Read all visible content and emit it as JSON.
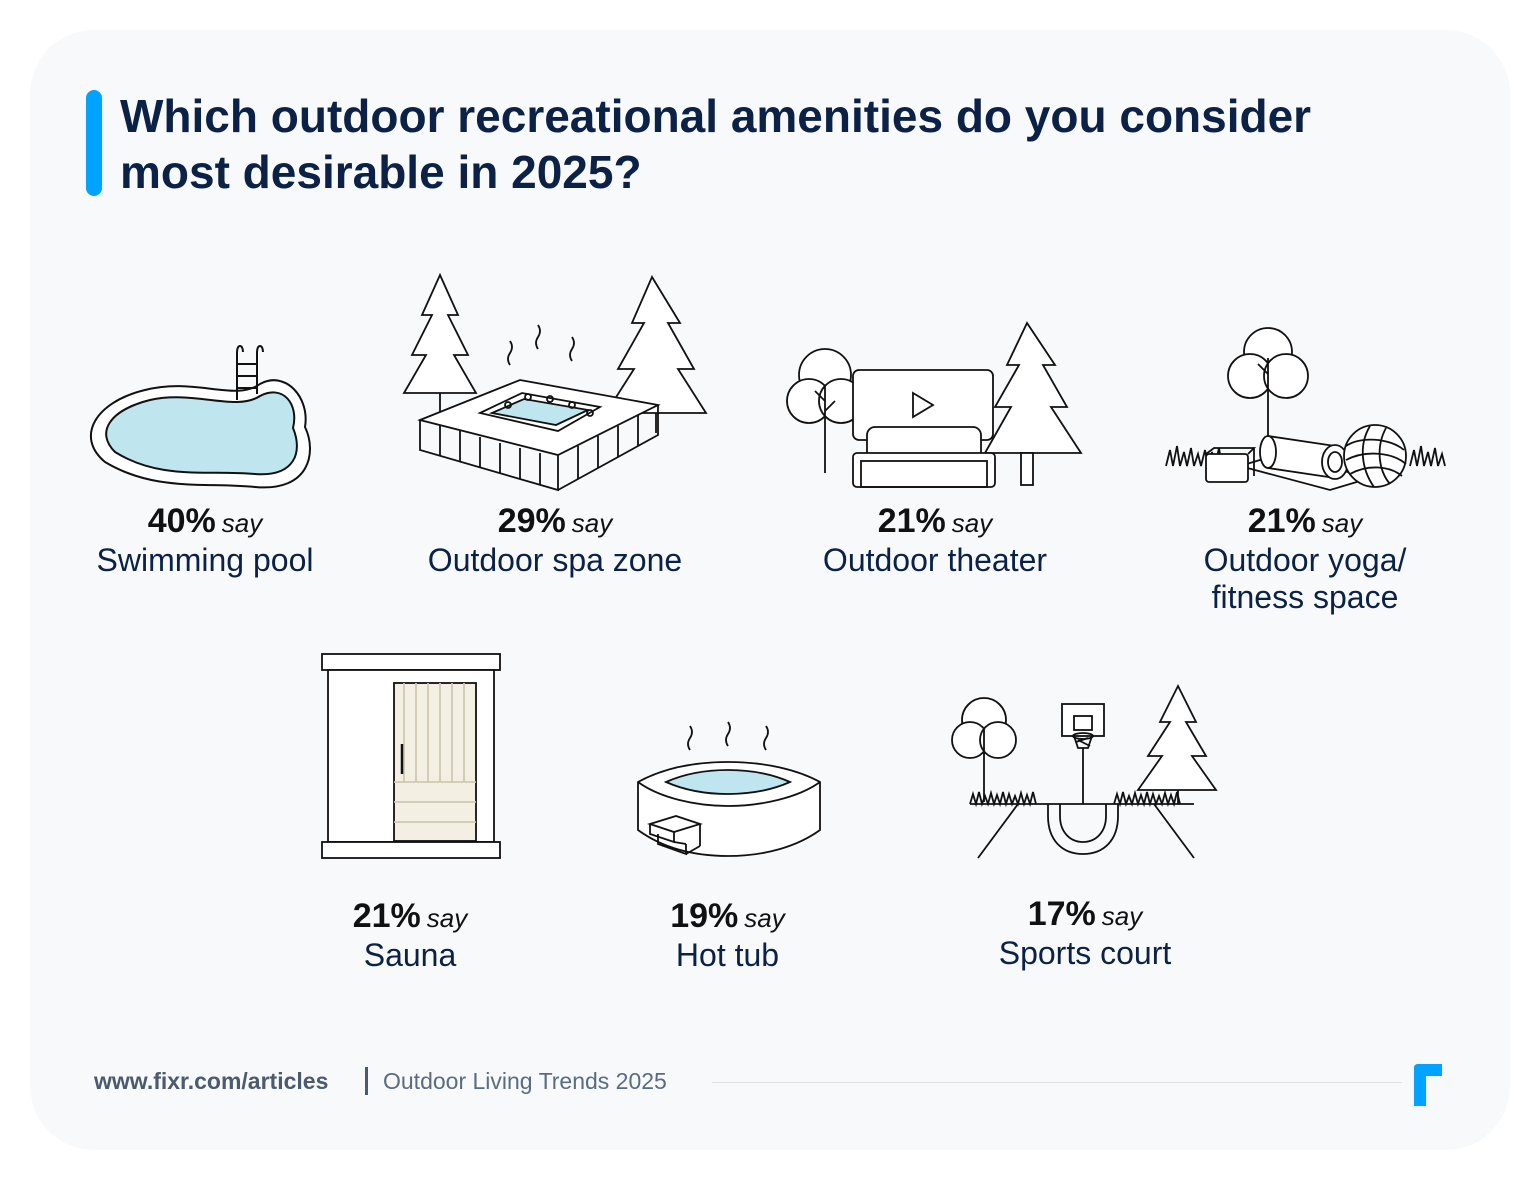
{
  "title": "Which outdoor recreational amenities do you consider most desirable in 2025?",
  "colors": {
    "accent": "#00a3ff",
    "title": "#0b2146",
    "water": "#bfe5ef"
  },
  "chart_data": {
    "type": "table",
    "title": "Which outdoor recreational amenities do you consider most desirable in 2025?",
    "unit": "percent of respondents",
    "rows": [
      {
        "label": "Swimming pool",
        "value": 40,
        "pct": "40%",
        "say": "say",
        "icon": "swimming-pool-icon"
      },
      {
        "label": "Outdoor spa zone",
        "value": 29,
        "pct": "29%",
        "say": "say",
        "icon": "spa-zone-icon"
      },
      {
        "label": "Outdoor theater",
        "value": 21,
        "pct": "21%",
        "say": "say",
        "icon": "outdoor-theater-icon"
      },
      {
        "label": "Outdoor yoga/ fitness space",
        "label_line1": "Outdoor yoga/",
        "label_line2": "fitness space",
        "value": 21,
        "pct": "21%",
        "say": "say",
        "icon": "yoga-fitness-icon"
      },
      {
        "label": "Sauna",
        "value": 21,
        "pct": "21%",
        "say": "say",
        "icon": "sauna-icon"
      },
      {
        "label": "Hot tub",
        "value": 19,
        "pct": "19%",
        "say": "say",
        "icon": "hot-tub-icon"
      },
      {
        "label": "Sports court",
        "value": 17,
        "pct": "17%",
        "say": "say",
        "icon": "sports-court-icon"
      }
    ]
  },
  "footer": {
    "url": "www.fixr.com/articles",
    "separator": "|",
    "report": "Outdoor Living Trends 2025"
  },
  "logo": {
    "icon": "fixr-logo-icon"
  }
}
